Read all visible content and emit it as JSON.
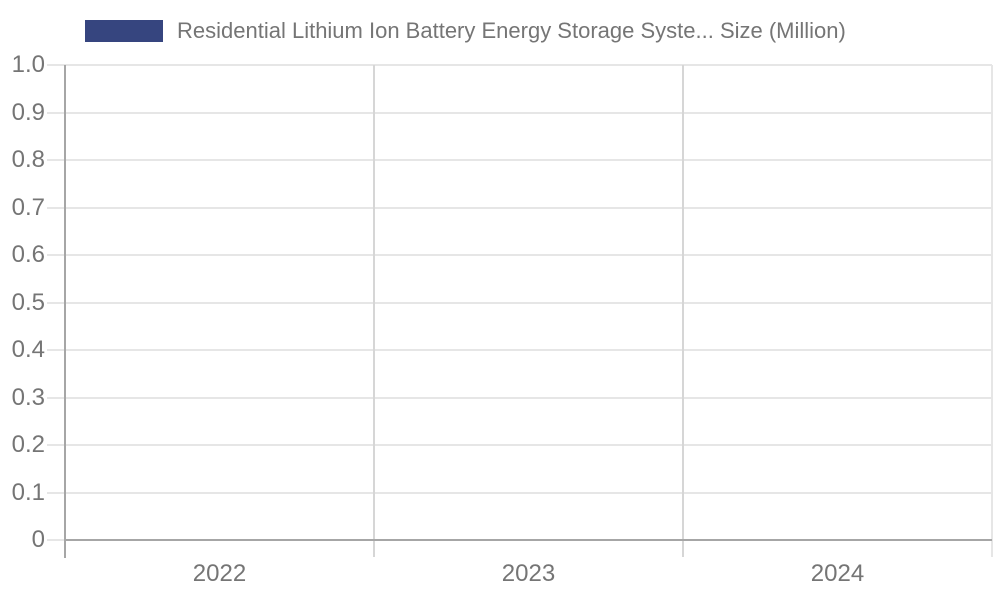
{
  "legend": {
    "label": "Residential Lithium Ion Battery Energy Storage Syste... Size (Million)",
    "swatch_color": "#36457F"
  },
  "colors": {
    "background": "#FFFFFF",
    "text": "#757575",
    "axis_line": "#A6A6A6",
    "gridline": "#E6E6E6",
    "divider": "#D6D6D6",
    "series_color": "#36457F"
  },
  "chart_data": {
    "type": "bar",
    "title": "Residential Lithium Ion Battery Energy Storage Syste... Size (Million)",
    "categories": [
      "2022",
      "2023",
      "2024"
    ],
    "series": [
      {
        "name": "Residential Lithium Ion Battery Energy Storage Syste... Size (Million)",
        "values": []
      }
    ],
    "xlabel": "",
    "ylabel": "",
    "ylim": [
      0,
      1.0
    ],
    "y_ticks": [
      "1.0",
      "0.9",
      "0.8",
      "0.7",
      "0.6",
      "0.5",
      "0.4",
      "0.3",
      "0.2",
      "0.1",
      "0"
    ],
    "grid": true,
    "legend_position": "top-left",
    "note": "no data plotted - empty plot area"
  }
}
